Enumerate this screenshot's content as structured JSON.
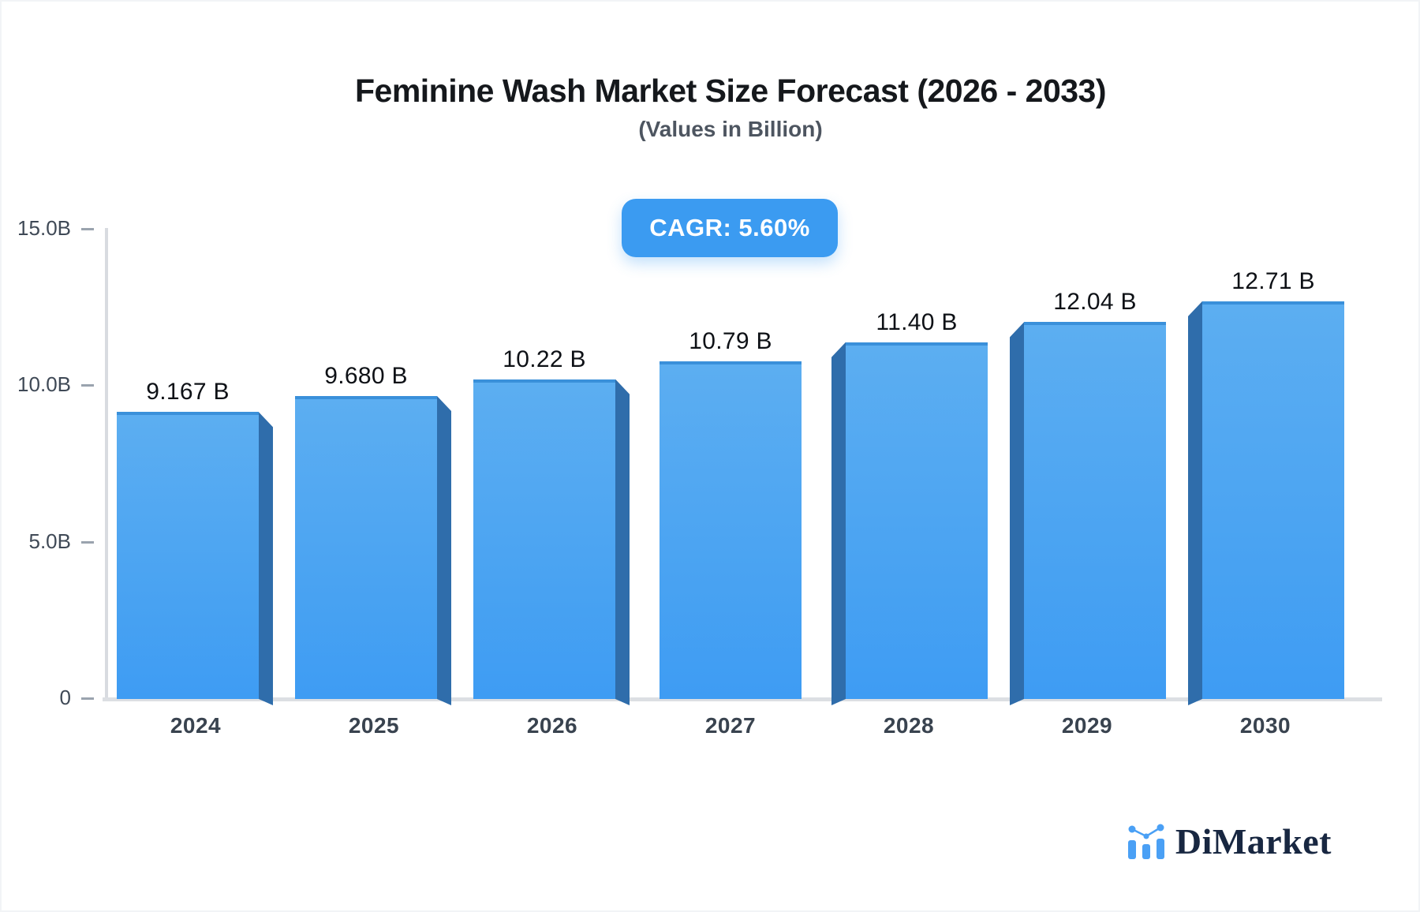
{
  "chart_data": {
    "type": "bar",
    "title": "Feminine Wash Market Size Forecast (2026 - 2033)",
    "subtitle": "(Values in Billion)",
    "cagr_label": "CAGR: 5.60%",
    "categories": [
      "2024",
      "2025",
      "2026",
      "2027",
      "2028",
      "2029",
      "2030"
    ],
    "values": [
      9.167,
      9.68,
      10.22,
      10.79,
      11.4,
      12.04,
      12.71
    ],
    "value_labels": [
      "9.167 B",
      "9.680 B",
      "10.22 B",
      "10.79 B",
      "11.40 B",
      "12.04 B",
      "12.71 B"
    ],
    "xlabel": "",
    "ylabel": "",
    "ylim": [
      0,
      15
    ],
    "yticks": [
      {
        "value": 15,
        "label": "15.0B"
      },
      {
        "value": 10,
        "label": "10.0B"
      },
      {
        "value": 5,
        "label": "5.0B"
      },
      {
        "value": 0,
        "label": "0"
      }
    ],
    "grid": "off",
    "legend": "none",
    "colors": {
      "bar_face_top": "#5caef1",
      "bar_face_bottom": "#3e9cf3",
      "bar_side": "#2f6dab",
      "badge_bg": "#3b9bf1"
    }
  },
  "logo": {
    "text": "DiMarket",
    "icon": "bar-chart-icon",
    "colors": {
      "navy": "#182741",
      "blue": "#4aa0f5"
    }
  }
}
